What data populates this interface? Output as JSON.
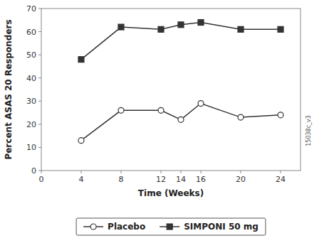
{
  "chart_data": {
    "type": "line",
    "x": [
      4,
      8,
      12,
      14,
      16,
      20,
      24
    ],
    "series": [
      {
        "name": "Placebo",
        "color": "#333333",
        "marker": "open-circle",
        "values": [
          13,
          26,
          26,
          22,
          29,
          23,
          24
        ]
      },
      {
        "name": "SIMPONI 50 mg",
        "color": "#333333",
        "marker": "square",
        "values": [
          48,
          62,
          61,
          63,
          64,
          61,
          61
        ]
      }
    ],
    "xlabel": "Time (Weeks)",
    "ylabel": "Percent ASAS 20 Responders",
    "xlim": [
      0,
      26
    ],
    "ylim": [
      0,
      70
    ],
    "xticks": [
      0,
      4,
      8,
      12,
      14,
      16,
      20,
      24
    ],
    "yticks": [
      0,
      10,
      20,
      30,
      40,
      50,
      60,
      70
    ],
    "annotations": [
      "15038c_v3"
    ],
    "legend": "bottom",
    "grid": false
  }
}
